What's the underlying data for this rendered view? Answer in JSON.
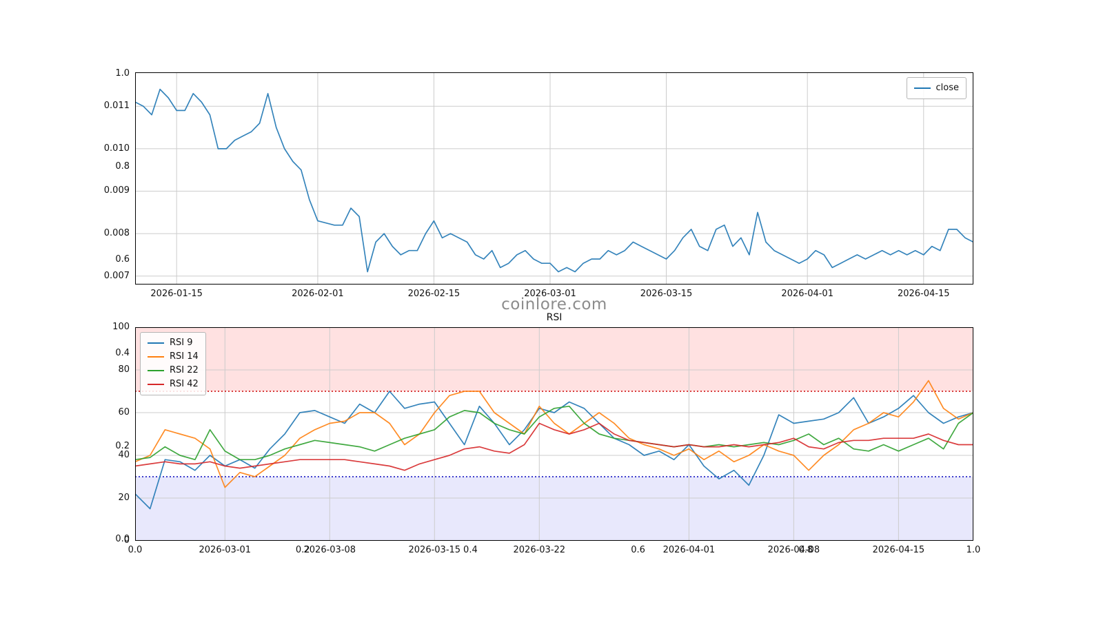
{
  "watermark": "coinlore.com",
  "overlay_axis": {
    "x_ticks": [
      "0.0",
      "0.2",
      "0.4",
      "0.6",
      "0.8",
      "1.0"
    ],
    "y_ticks": [
      "0.0",
      "0.2",
      "0.4",
      "0.6",
      "0.8",
      "1.0"
    ]
  },
  "chart_data": [
    {
      "type": "line",
      "name": "price",
      "title": "",
      "legend_position": "top-right",
      "grid": true,
      "x_start": "2026-01-10",
      "x_end": "2026-04-21",
      "x_ticks": [
        "2026-01-15",
        "2026-02-01",
        "2026-02-15",
        "2026-03-01",
        "2026-03-15",
        "2026-04-01",
        "2026-04-15"
      ],
      "ylim": [
        0.0068,
        0.0118
      ],
      "y_ticks": [
        {
          "value": 0.007,
          "label": "0.007"
        },
        {
          "value": 0.008,
          "label": "0.008"
        },
        {
          "value": 0.009,
          "label": "0.009"
        },
        {
          "value": 0.01,
          "label": "0.010"
        },
        {
          "value": 0.011,
          "label": "0.011"
        }
      ],
      "series": [
        {
          "name": "close",
          "color": "#1f77b4",
          "values": [
            0.0111,
            0.011,
            0.0108,
            0.0114,
            0.0112,
            0.0109,
            0.0109,
            0.0113,
            0.0111,
            0.0108,
            0.01,
            0.01,
            0.0102,
            0.0103,
            0.0104,
            0.0106,
            0.0113,
            0.0105,
            0.01,
            0.0097,
            0.0095,
            0.0088,
            0.0083,
            0.00825,
            0.0082,
            0.0082,
            0.0086,
            0.0084,
            0.0071,
            0.0078,
            0.008,
            0.0077,
            0.0075,
            0.0076,
            0.0076,
            0.008,
            0.0083,
            0.0079,
            0.008,
            0.0079,
            0.0078,
            0.0075,
            0.0074,
            0.0076,
            0.0072,
            0.0073,
            0.0075,
            0.0076,
            0.0074,
            0.0073,
            0.0073,
            0.0071,
            0.0072,
            0.0071,
            0.0073,
            0.0074,
            0.0074,
            0.0076,
            0.0075,
            0.0076,
            0.0078,
            0.0077,
            0.0076,
            0.0075,
            0.0074,
            0.0076,
            0.0079,
            0.0081,
            0.0077,
            0.0076,
            0.0081,
            0.0082,
            0.0077,
            0.0079,
            0.0075,
            0.0085,
            0.0078,
            0.0076,
            0.0075,
            0.0074,
            0.0073,
            0.0074,
            0.0076,
            0.0075,
            0.0072,
            0.0073,
            0.0074,
            0.0075,
            0.0074,
            0.0075,
            0.0076,
            0.0075,
            0.0076,
            0.0075,
            0.0076,
            0.0075,
            0.0077,
            0.0076,
            0.0081,
            0.0081,
            0.0079,
            0.0078
          ]
        }
      ]
    },
    {
      "type": "line",
      "name": "rsi",
      "title": "RSI",
      "legend_position": "top-left",
      "grid": true,
      "x_start": "2026-02-23",
      "x_end": "2026-04-20",
      "x_ticks": [
        "2026-03-01",
        "2026-03-08",
        "2026-03-15",
        "2026-03-22",
        "2026-04-01",
        "2026-04-08",
        "2026-04-15"
      ],
      "ylim": [
        0,
        100
      ],
      "y_ticks": [
        {
          "value": 0,
          "label": "0"
        },
        {
          "value": 20,
          "label": "20"
        },
        {
          "value": 40,
          "label": "40"
        },
        {
          "value": 60,
          "label": "60"
        },
        {
          "value": 80,
          "label": "80"
        },
        {
          "value": 100,
          "label": "100"
        }
      ],
      "bands": [
        {
          "name": "overbought",
          "from": 70,
          "to": 100,
          "color": "rgba(255,90,90,0.18)",
          "line": 70,
          "line_color": "#cc0000"
        },
        {
          "name": "oversold",
          "from": 0,
          "to": 30,
          "color": "rgba(100,100,235,0.15)",
          "line": 30,
          "line_color": "#0000bb"
        }
      ],
      "series": [
        {
          "name": "RSI 9",
          "color": "#1f77b4",
          "values": [
            22,
            15,
            38,
            37,
            33,
            40,
            35,
            38,
            34,
            43,
            50,
            60,
            61,
            58,
            55,
            64,
            60,
            70,
            62,
            64,
            65,
            55,
            45,
            63,
            55,
            45,
            52,
            62,
            60,
            65,
            62,
            55,
            48,
            45,
            40,
            42,
            38,
            45,
            35,
            29,
            33,
            26,
            40,
            59,
            55,
            56,
            57,
            60,
            67,
            55,
            58,
            62,
            68,
            60,
            55,
            58,
            60
          ]
        },
        {
          "name": "RSI 14",
          "color": "#ff7f0e",
          "values": [
            37,
            40,
            52,
            50,
            48,
            43,
            25,
            32,
            30,
            35,
            40,
            48,
            52,
            55,
            56,
            60,
            60,
            55,
            45,
            50,
            60,
            68,
            70,
            70,
            60,
            55,
            50,
            63,
            55,
            50,
            55,
            60,
            55,
            48,
            45,
            43,
            40,
            43,
            38,
            42,
            37,
            40,
            45,
            42,
            40,
            33,
            40,
            45,
            52,
            55,
            60,
            58,
            65,
            75,
            62,
            57,
            60
          ]
        },
        {
          "name": "RSI 22",
          "color": "#2ca02c",
          "values": [
            38,
            39,
            44,
            40,
            38,
            52,
            42,
            38,
            38,
            40,
            43,
            45,
            47,
            46,
            45,
            44,
            42,
            45,
            48,
            50,
            52,
            58,
            61,
            60,
            55,
            52,
            50,
            58,
            62,
            63,
            55,
            50,
            48,
            47,
            46,
            45,
            44,
            45,
            44,
            45,
            44,
            45,
            46,
            45,
            47,
            50,
            45,
            48,
            43,
            42,
            45,
            42,
            45,
            48,
            43,
            55,
            60
          ]
        },
        {
          "name": "RSI 42",
          "color": "#d62728",
          "values": [
            35,
            36,
            37,
            36,
            36,
            37,
            35,
            34,
            35,
            36,
            37,
            38,
            38,
            38,
            38,
            37,
            36,
            35,
            33,
            36,
            38,
            40,
            43,
            44,
            42,
            41,
            45,
            55,
            52,
            50,
            52,
            55,
            50,
            47,
            46,
            45,
            44,
            45,
            44,
            44,
            45,
            44,
            45,
            46,
            48,
            44,
            43,
            46,
            47,
            47,
            48,
            48,
            48,
            50,
            47,
            45,
            45
          ]
        }
      ]
    }
  ]
}
